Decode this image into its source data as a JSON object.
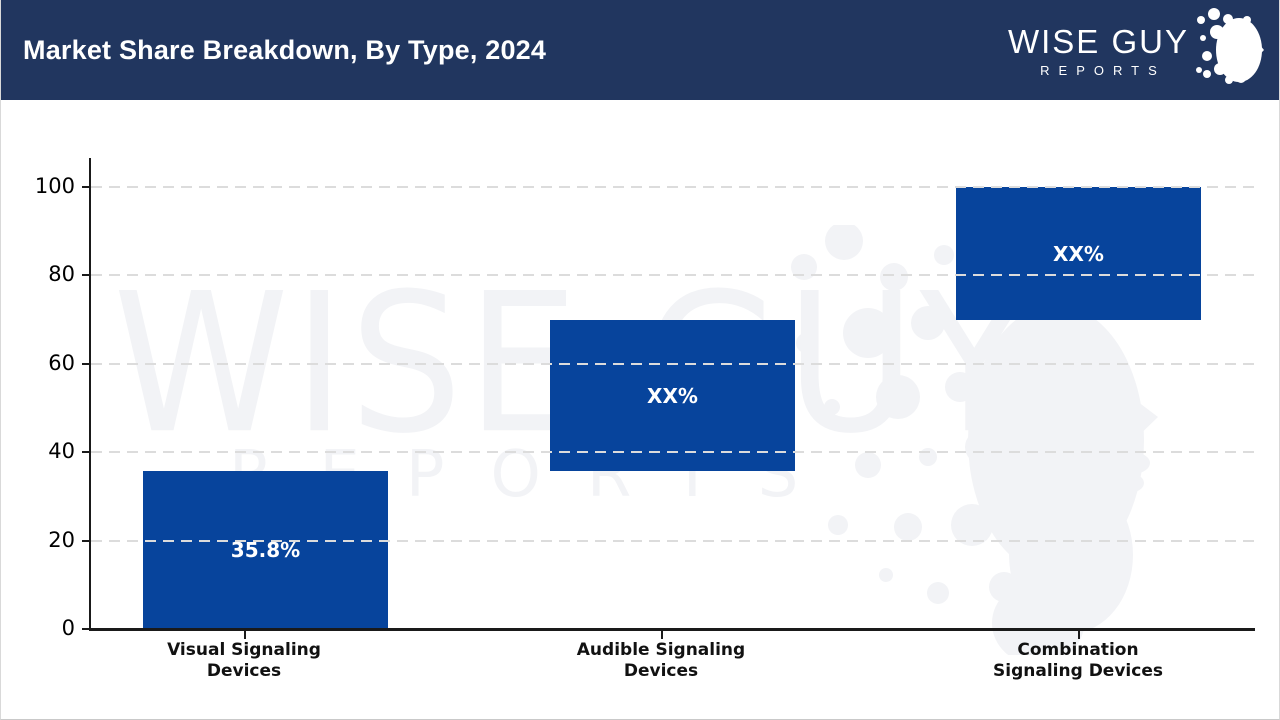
{
  "header": {
    "title": "Market Share Breakdown, By Type, 2024",
    "background_color": "#21365f",
    "logo": {
      "line1": "WISE GUY",
      "line2": "REPORTS",
      "face_icon": "dotted-head-profile"
    }
  },
  "watermark": {
    "line1": "WISE GUY",
    "line2": "REPORTS",
    "face_icon": "dotted-head-profile",
    "color": "#f2f3f6"
  },
  "chart_data": {
    "type": "bar",
    "subtype": "floating-segment (waterfall-style) market share bars",
    "title": "Market Share Breakdown, By Type, 2024",
    "categories": [
      "Visual Signaling\nDevices",
      "Audible Signaling\nDevices",
      "Combination\nSignaling Devices"
    ],
    "segments": [
      {
        "category": "Visual Signaling Devices",
        "start": 0,
        "end": 35.8,
        "label": "35.8%"
      },
      {
        "category": "Audible Signaling Devices",
        "start": 35.8,
        "end": 69.8,
        "label": "XX%"
      },
      {
        "category": "Combination Signaling Devices",
        "start": 69.8,
        "end": 100,
        "label": "XX%"
      }
    ],
    "xlabel": "",
    "ylabel": "",
    "ylim": [
      0,
      100
    ],
    "yticks": [
      0,
      20,
      40,
      60,
      80,
      100
    ],
    "grid": "horizontal dashed, drawn over bars",
    "legend": "none",
    "bar_color": "#07449c",
    "bar_label_color": "#ffffff",
    "axis_color": "#1a1a1a",
    "gridline_color": "#dcdcdc"
  }
}
